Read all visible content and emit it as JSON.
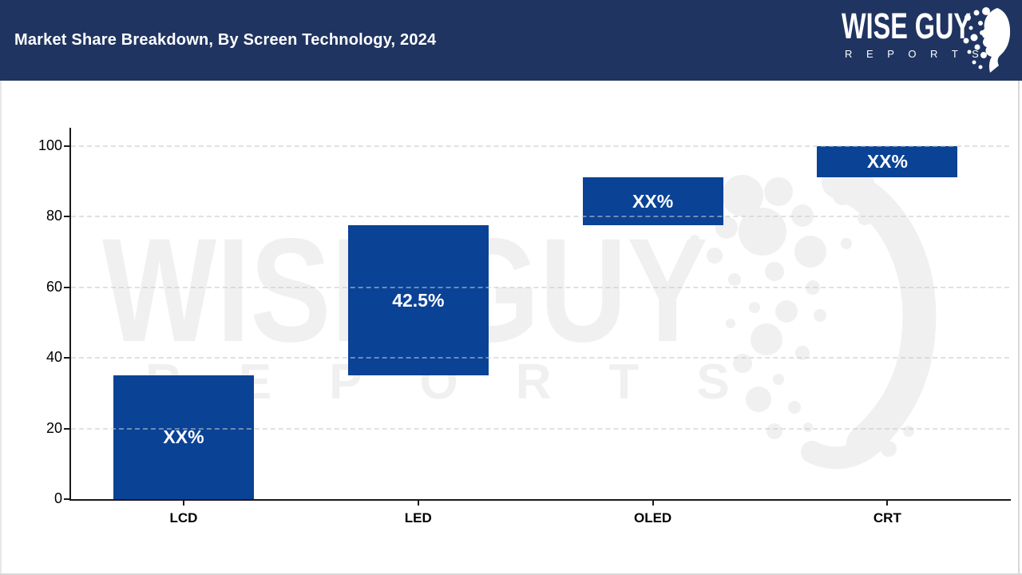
{
  "header": {
    "title": "Market Share Breakdown, By Screen Technology, 2024",
    "bg_color": "#1f3461",
    "logo": {
      "line1": "WISE GUY",
      "line2": "R E P O R T S"
    }
  },
  "watermark": {
    "line1": "WISE GUY",
    "line2": "REPORTS"
  },
  "chart_data": {
    "type": "bar",
    "subtype": "waterfall",
    "title": "Market Share Breakdown, By Screen Technology, 2024",
    "categories": [
      "LCD",
      "LED",
      "OLED",
      "CRT"
    ],
    "bars": [
      {
        "category": "LCD",
        "start": 0,
        "end": 35,
        "value": 35,
        "label": "XX%"
      },
      {
        "category": "LED",
        "start": 35,
        "end": 77.5,
        "value": 42.5,
        "label": "42.5%"
      },
      {
        "category": "OLED",
        "start": 77.5,
        "end": 91,
        "value": 13.5,
        "label": "XX%"
      },
      {
        "category": "CRT",
        "start": 91,
        "end": 100,
        "value": 9,
        "label": "XX%"
      }
    ],
    "xlabel": "",
    "ylabel": "",
    "yticks": [
      0,
      20,
      40,
      60,
      80,
      100
    ],
    "ylim": [
      0,
      105
    ],
    "grid": "horizontal-dashed",
    "legend": "none",
    "bar_color": "#0a4296",
    "bar_label_color": "#ffffff",
    "axis_color": "#1a1a1a"
  }
}
